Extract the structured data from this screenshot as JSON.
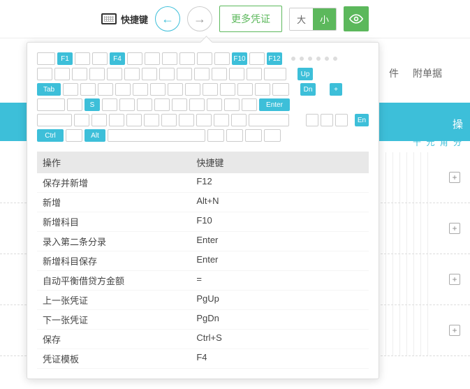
{
  "toolbar": {
    "shortcut_label": "快捷键",
    "more_voucher": "更多凭证",
    "size_large": "大",
    "size_small": "小"
  },
  "attach": {
    "file_suffix": "件",
    "attach_label": "附单据"
  },
  "header": {
    "cols": "十 元 角 分",
    "ops": "操"
  },
  "shortcut_table": {
    "col_action": "操作",
    "col_key": "快捷键",
    "rows": [
      {
        "action": "保存并新增",
        "key": "F12"
      },
      {
        "action": "新增",
        "key": "Alt+N"
      },
      {
        "action": "新增科目",
        "key": "F10"
      },
      {
        "action": "录入第二条分录",
        "key": "Enter"
      },
      {
        "action": "新增科目保存",
        "key": "Enter"
      },
      {
        "action": "自动平衡借贷方金额",
        "key": "="
      },
      {
        "action": "上一张凭证",
        "key": "PgUp"
      },
      {
        "action": "下一张凭证",
        "key": "PgDn"
      },
      {
        "action": "保存",
        "key": "Ctrl+S"
      },
      {
        "action": "凭证模板",
        "key": "F4"
      }
    ]
  },
  "keyboard": {
    "row1_labels": [
      "",
      "F1",
      "",
      "",
      "F4",
      "",
      "",
      "",
      "",
      "",
      "",
      "F10",
      "",
      "F12"
    ],
    "row1_hl": [
      0,
      1,
      0,
      0,
      1,
      0,
      0,
      0,
      0,
      0,
      0,
      1,
      0,
      1
    ],
    "row2_count": 14,
    "row2_hl_idx": -1,
    "up_label": "Up",
    "tab_label": "Tab",
    "dn_label": "Dn",
    "s_label": "S",
    "enter_label": "Enter",
    "ctrl_label": "Ctrl",
    "alt_label": "Alt",
    "en_label": "En",
    "plus_label": "+"
  },
  "colors": {
    "accent": "#3dbfd9",
    "green": "#5cb85c"
  }
}
